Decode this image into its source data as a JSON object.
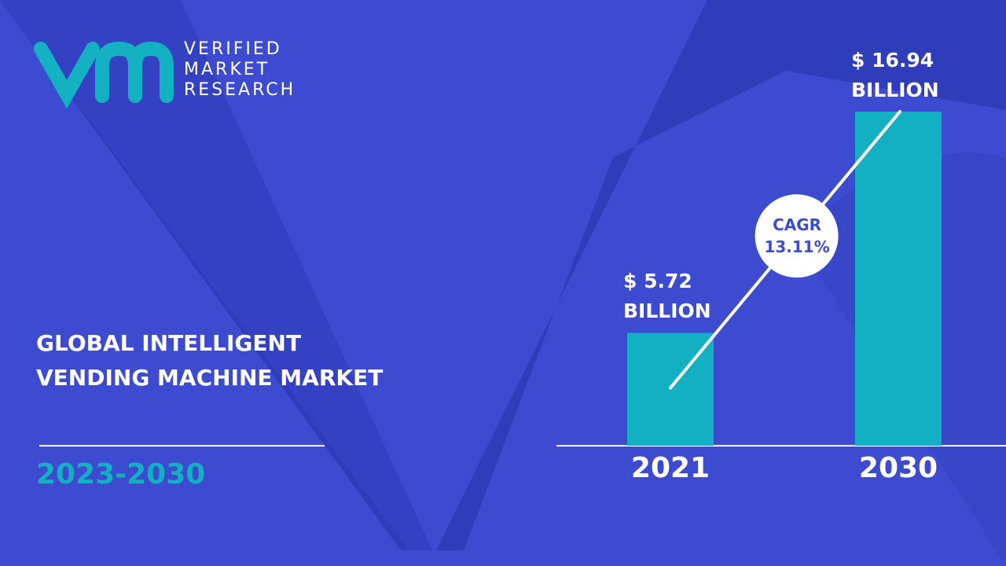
{
  "logo": "VERIFIED MARKET RESEARCH",
  "chart_data": {
    "type": "bar",
    "title": "GLOBAL INTELLIGENT VENDING MACHINE MARKET",
    "subtitle": "2023-2030",
    "categories": [
      "2021",
      "2030"
    ],
    "values": [
      5.72,
      16.94
    ],
    "value_labels": [
      "$ 5.72 BILLION",
      "$ 16.94 BILLION"
    ],
    "color": "#12b0c2",
    "annotation": "CAGR 13.11%"
  }
}
